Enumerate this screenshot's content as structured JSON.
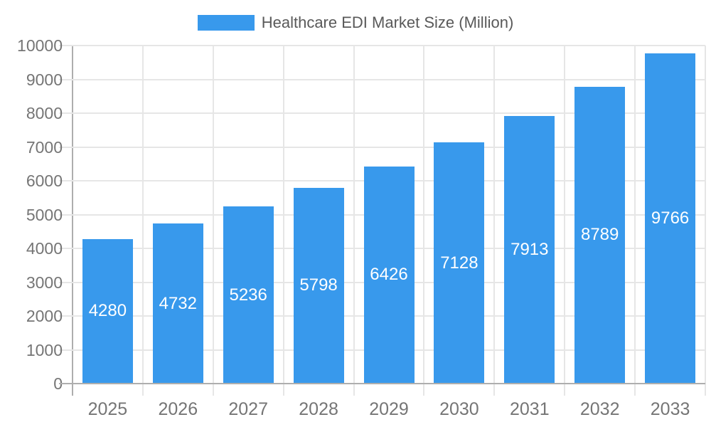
{
  "chart_data": {
    "type": "bar",
    "title": "Healthcare EDI Market Size (Million)",
    "categories": [
      "2025",
      "2026",
      "2027",
      "2028",
      "2029",
      "2030",
      "2031",
      "2032",
      "2033"
    ],
    "values": [
      4280,
      4732,
      5236,
      5798,
      6426,
      7128,
      7913,
      8789,
      9766
    ],
    "xlabel": "",
    "ylabel": "",
    "ylim": [
      0,
      10000
    ],
    "ytick_step": 1000,
    "ytick_labels": [
      "0",
      "1000",
      "2000",
      "3000",
      "4000",
      "5000",
      "6000",
      "7000",
      "8000",
      "9000",
      "10000"
    ],
    "grid": "both",
    "legend_position": "top-center",
    "value_labels": "centered-inside-bars",
    "colors": {
      "bar": "#3899ec",
      "bar_value_text": "#ffffff",
      "gridline": "#e6e6e6",
      "axis_line": "#aeaeae",
      "axis_tick_text": "#757575",
      "legend_text": "#595959",
      "background": "#ffffff"
    }
  }
}
